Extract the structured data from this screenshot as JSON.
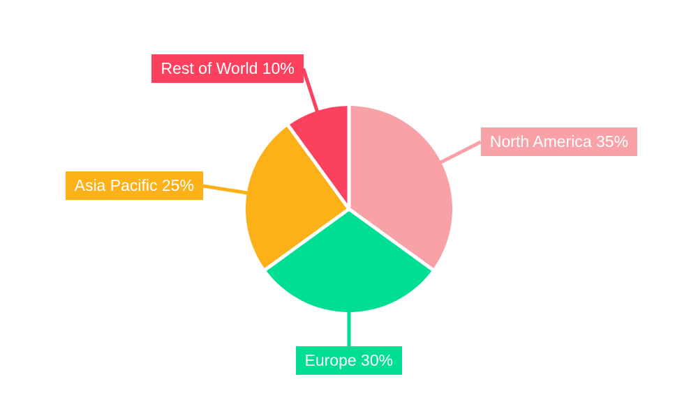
{
  "chart_data": {
    "type": "pie",
    "title": "",
    "unit": "%",
    "direction": "clockwise",
    "start_angle_deg": 0,
    "background_color": "#ffffff",
    "separator_color": "#ffffff",
    "label_text_color": "#ffffff",
    "legend_position": "callout-labels",
    "slices": [
      {
        "label": "North America",
        "value": 35,
        "display": "North America 35%",
        "color": "#f8a2a8"
      },
      {
        "label": "Europe",
        "value": 30,
        "display": "Europe 30%",
        "color": "#00de95"
      },
      {
        "label": "Asia Pacific",
        "value": 25,
        "display": "Asia Pacific 25%",
        "color": "#fbb117"
      },
      {
        "label": "Rest of World",
        "value": 10,
        "display": "Rest of World 10%",
        "color": "#fc415f"
      }
    ]
  }
}
